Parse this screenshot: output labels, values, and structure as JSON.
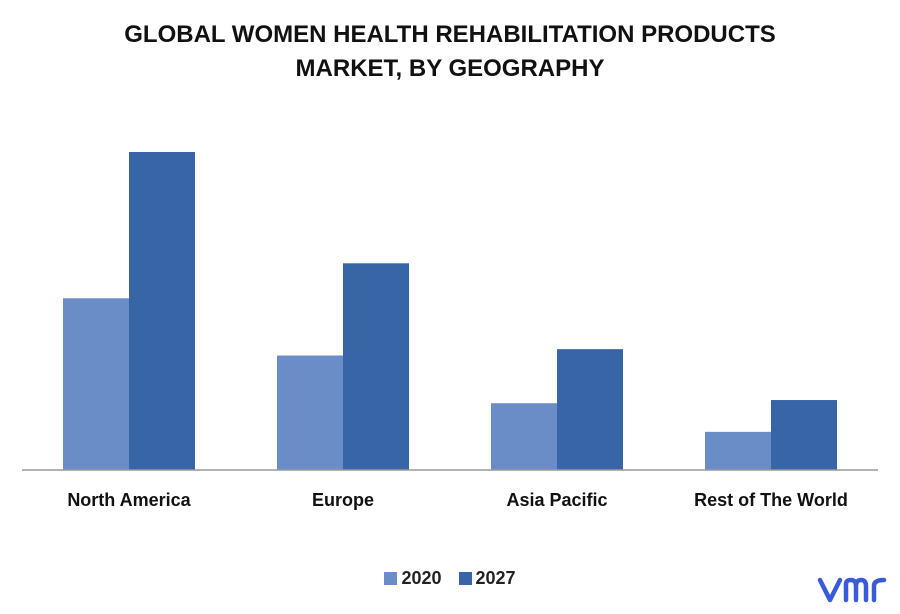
{
  "title_line1": "GLOBAL WOMEN HEALTH REHABILITATION PRODUCTS",
  "title_line2": "MARKET, BY GEOGRAPHY",
  "colors": {
    "series_2020": "#6a8dc8",
    "series_2027": "#3865a6",
    "axis": "#999999",
    "logo": "#3a5bd9"
  },
  "logo_icon": "vmr-logo-icon",
  "chart_data": {
    "type": "bar",
    "title": "GLOBAL WOMEN HEALTH REHABILITATION PRODUCTS MARKET, BY GEOGRAPHY",
    "categories": [
      "North America",
      "Europe",
      "Asia Pacific",
      "Rest of The World"
    ],
    "series": [
      {
        "name": "2020",
        "values": [
          54,
          36,
          21,
          12
        ]
      },
      {
        "name": "2027",
        "values": [
          100,
          65,
          38,
          22
        ]
      }
    ],
    "ylim": [
      0,
      100
    ],
    "grid": false,
    "legend": "bottom-center"
  }
}
